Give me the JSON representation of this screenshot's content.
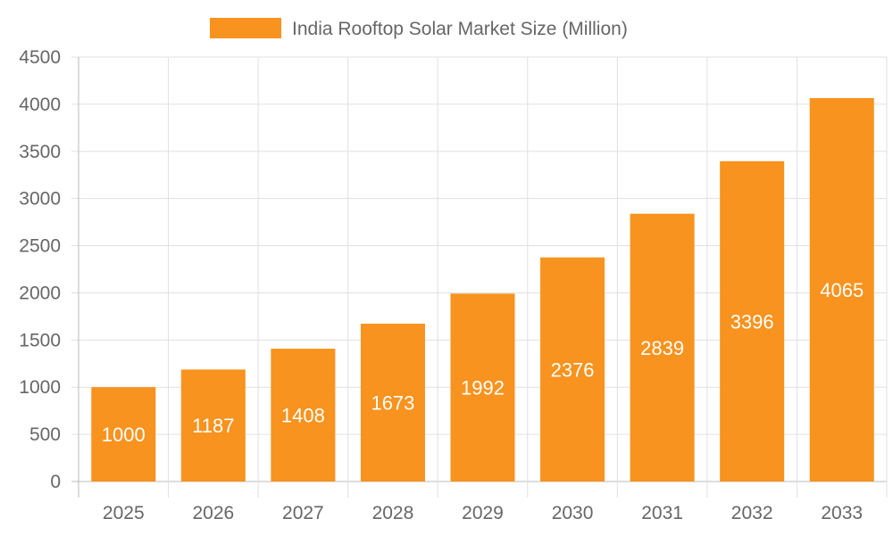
{
  "chart_data": {
    "type": "bar",
    "title": "",
    "legend": {
      "position": "top",
      "entries": [
        "India Rooftop Solar Market Size (Million)"
      ]
    },
    "categories": [
      "2025",
      "2026",
      "2027",
      "2028",
      "2029",
      "2030",
      "2031",
      "2032",
      "2033"
    ],
    "series": [
      {
        "name": "India Rooftop Solar Market Size (Million)",
        "values": [
          1000,
          1187,
          1408,
          1673,
          1992,
          2376,
          2839,
          3396,
          4065
        ],
        "color": "#F7931E"
      }
    ],
    "xlabel": "",
    "ylabel": "",
    "ylim": [
      0,
      4500
    ],
    "yticks": [
      0,
      500,
      1000,
      1500,
      2000,
      2500,
      3000,
      3500,
      4000,
      4500
    ],
    "grid": true,
    "data_labels": true
  }
}
